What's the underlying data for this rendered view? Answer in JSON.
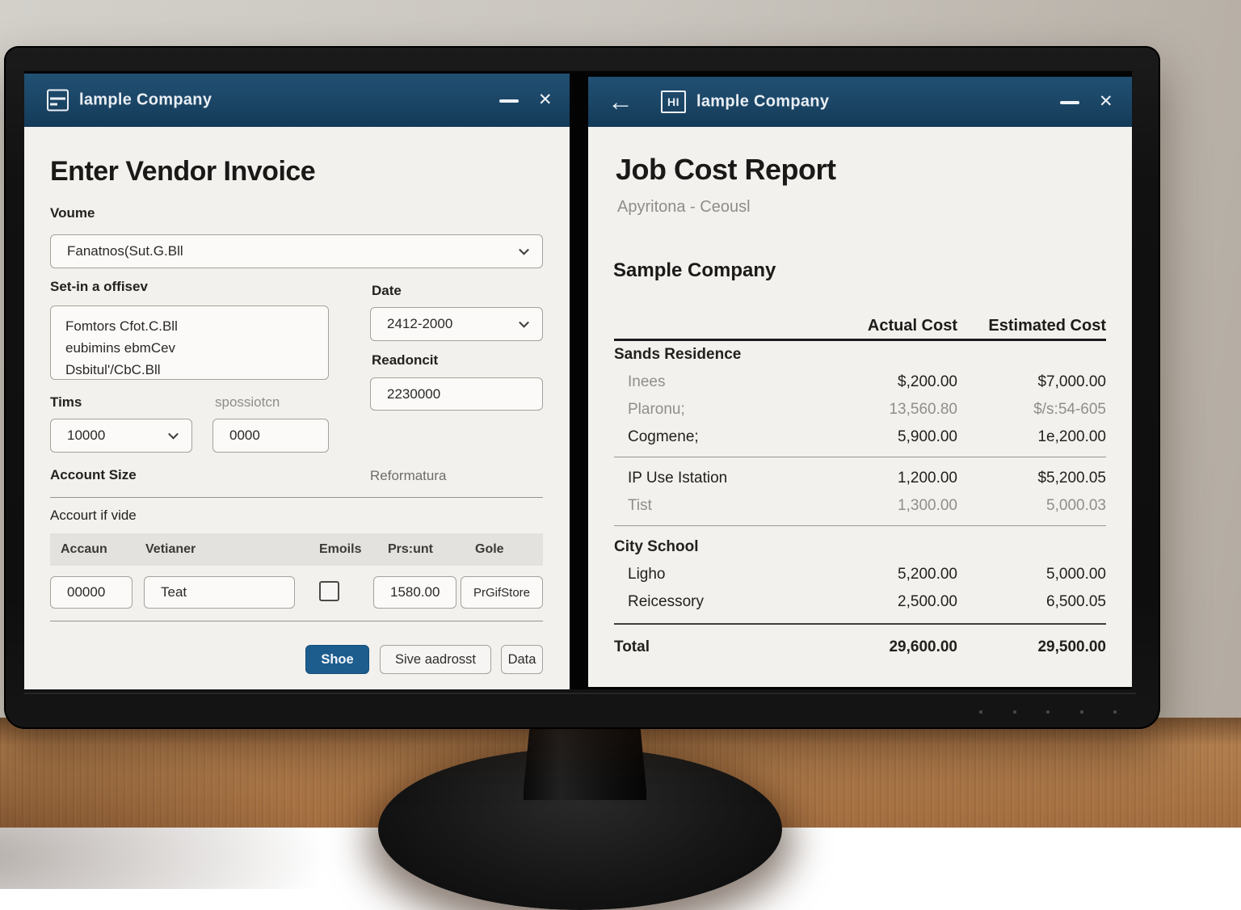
{
  "colors": {
    "titlebar_navy": "#1b4565",
    "primary_button_blue": "#1d5d8e",
    "window_bg": "#f2f1ee",
    "desk_wood": "#ad7a4a",
    "wall_gray": "#c9c5be"
  },
  "left_window": {
    "titlebar": {
      "title": "lample Company",
      "close_glyph": "✕"
    },
    "heading": "Enter Vendor Invoice",
    "vendor": {
      "label": "Voume",
      "value": "Fanatnos(Sut.G.Bll"
    },
    "address": {
      "label": "Set-in a offisev",
      "lines": [
        "Fomtors Cfot.C.Bll",
        "eubimins ebmCev",
        "Dsbitul'/CbC.Bll"
      ]
    },
    "date": {
      "label": "Date",
      "value": "2412-2000"
    },
    "reference": {
      "label": "Readoncit",
      "value": "2230000"
    },
    "terms": {
      "label": "Tims",
      "value": "10000"
    },
    "position": {
      "label": "spossiotcn",
      "value": "0000"
    },
    "section": {
      "left": "Account Size",
      "right": "Reformatura",
      "sub": "Accourt if vide"
    },
    "table": {
      "headers": [
        "Accaun",
        "Vetianer",
        "Emoils",
        "Prs:unt",
        "Gole"
      ],
      "row": {
        "account": "00000",
        "vendor": "Teat",
        "checked": false,
        "amount": "1580.00",
        "store": "PrGifStore"
      }
    },
    "buttons": {
      "primary": "Shoe",
      "secondary": "Sive aadrosst",
      "tertiary": "Data"
    }
  },
  "right_window": {
    "titlebar": {
      "title": "lample Company",
      "icon_text": "HI",
      "back_glyph": "←",
      "close_glyph": "✕"
    },
    "heading": "Job Cost Report",
    "subtitle": "Apyritona - Ceousl",
    "company": "Sample Company",
    "report": {
      "columns": {
        "actual": "Actual Cost",
        "estimated": "Estimated Cost"
      },
      "rows": [
        {
          "kind": "group",
          "label": "Sands Residence"
        },
        {
          "kind": "item",
          "label": "Inees",
          "actual": "$,200.00",
          "estimated": "$7,000.00",
          "label_muted": true
        },
        {
          "kind": "item",
          "label": "Plaronu;",
          "actual": "13,560.80",
          "estimated": "$/s:54-605",
          "muted": true
        },
        {
          "kind": "item",
          "label": "Cogmene;",
          "actual": "5,900.00",
          "estimated": "1e,200.00"
        },
        {
          "kind": "divider"
        },
        {
          "kind": "item",
          "label": "IP Use Istation",
          "actual": "1,200.00",
          "estimated": "$5,200.05"
        },
        {
          "kind": "item",
          "label": "Tist",
          "actual": "1,300.00",
          "estimated": "5,000.03",
          "muted": true
        },
        {
          "kind": "divider"
        },
        {
          "kind": "group",
          "label": "City School"
        },
        {
          "kind": "item",
          "label": "Ligho",
          "actual": "5,200.00",
          "estimated": "5,000.00"
        },
        {
          "kind": "item",
          "label": "Reicessory",
          "actual": "2,500.00",
          "estimated": "6,500.05"
        },
        {
          "kind": "divider-dark"
        },
        {
          "kind": "total",
          "label": "Total",
          "actual": "29,600.00",
          "estimated": "29,500.00"
        }
      ]
    }
  }
}
